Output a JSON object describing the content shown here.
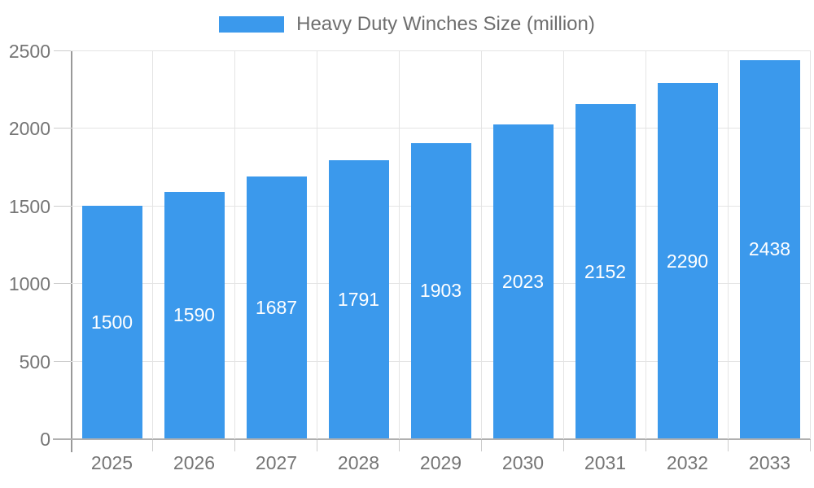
{
  "chart_data": {
    "type": "bar",
    "title": "Heavy Duty Winches Size (million)",
    "legend_position": "top",
    "categories": [
      "2025",
      "2026",
      "2027",
      "2028",
      "2029",
      "2030",
      "2031",
      "2032",
      "2033"
    ],
    "values": [
      1500,
      1590,
      1687,
      1791,
      1903,
      2023,
      2152,
      2290,
      2438
    ],
    "xlabel": "",
    "ylabel": "",
    "ylim": [
      0,
      2500
    ],
    "yticks": [
      0,
      500,
      1000,
      1500,
      2000,
      2500
    ],
    "grid": true,
    "colors": {
      "bar": "#3B99EC",
      "bar_value_label": "#ffffff",
      "axis_text": "#757575",
      "legend_text": "#6e6e6e",
      "gridline": "#e4e4e4",
      "axis_line": "#999999"
    }
  }
}
